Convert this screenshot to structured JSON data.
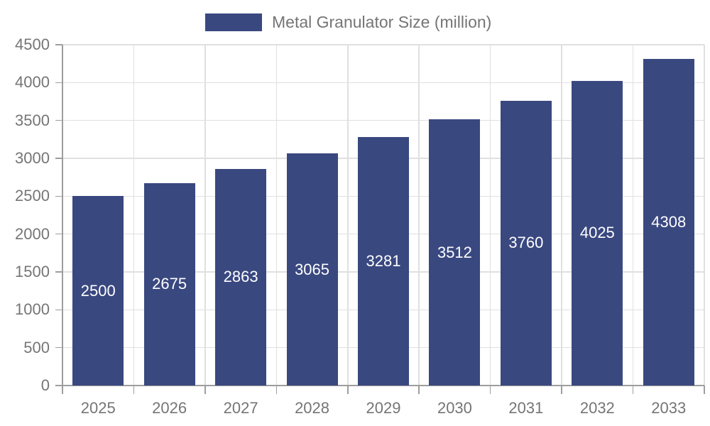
{
  "legend": {
    "label": "Metal Granulator Size (million)"
  },
  "colors": {
    "bar": "#3A4880",
    "bar_label": "#ffffff",
    "axis": "#9e9e9e",
    "grid": "#e0e0e0",
    "tick_label": "#757575",
    "legend_text": "#757575",
    "background": "#ffffff"
  },
  "chart_data": {
    "type": "bar",
    "title": "Metal Granulator Size (million)",
    "categories": [
      "2025",
      "2026",
      "2027",
      "2028",
      "2029",
      "2030",
      "2031",
      "2032",
      "2033"
    ],
    "values": [
      2500,
      2675,
      2863,
      3065,
      3281,
      3512,
      3760,
      4025,
      4308
    ],
    "series": [
      {
        "name": "Metal Granulator Size (million)",
        "values": [
          2500,
          2675,
          2863,
          3065,
          3281,
          3512,
          3760,
          4025,
          4308
        ]
      }
    ],
    "data_labels": [
      "2500",
      "2675",
      "2863",
      "3065",
      "3281",
      "3512",
      "3760",
      "4025",
      "4308"
    ],
    "xlabel": "",
    "ylabel": "",
    "ylim": [
      0,
      4500
    ],
    "ytick_step": 500,
    "yticks": [
      "0",
      "500",
      "1000",
      "1500",
      "2000",
      "2500",
      "3000",
      "3500",
      "4000",
      "4500"
    ],
    "grid": true,
    "legend_position": "top-center"
  }
}
